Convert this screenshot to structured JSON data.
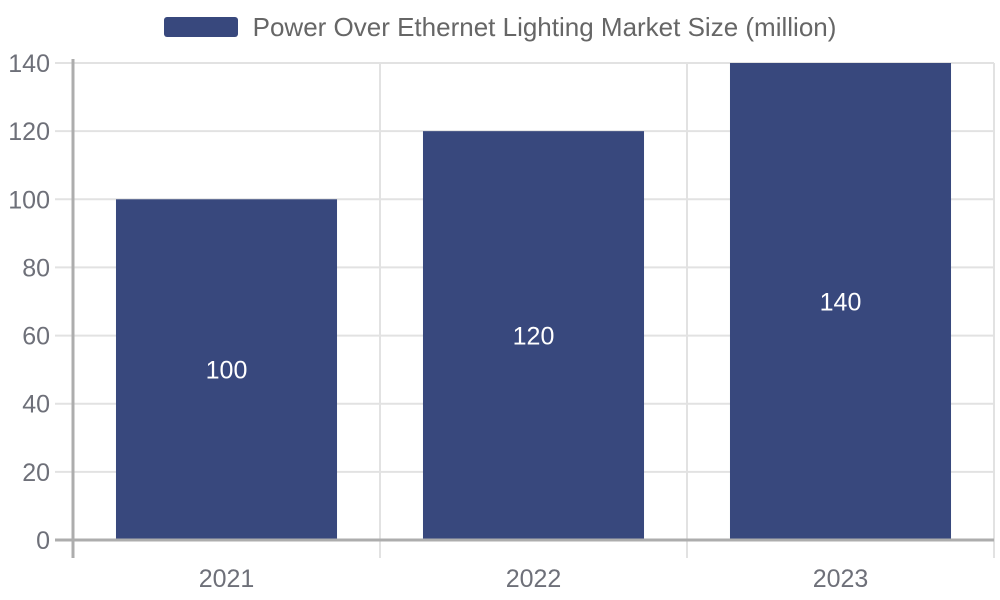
{
  "chart_data": {
    "type": "bar",
    "title": "",
    "legend": [
      "Power Over Ethernet Lighting Market Size (million)"
    ],
    "categories": [
      "2021",
      "2022",
      "2023"
    ],
    "series": [
      {
        "name": "Power Over Ethernet Lighting Market Size (million)",
        "values": [
          100,
          120,
          140
        ]
      }
    ],
    "bar_value_labels": [
      "100",
      "120",
      "140"
    ],
    "xlabel": "",
    "ylabel": "",
    "ylim": [
      0,
      140
    ],
    "yticks": [
      0,
      20,
      40,
      60,
      80,
      100,
      120,
      140
    ],
    "grid": true,
    "legend_position": "top-center"
  },
  "colors": {
    "bar": "#38487D",
    "axis_line": "#adadad",
    "grid_line": "#e2e2e2",
    "tick_label": "#6e7079",
    "legend_text": "#666666",
    "value_label": "#ffffff",
    "background": "#ffffff"
  }
}
